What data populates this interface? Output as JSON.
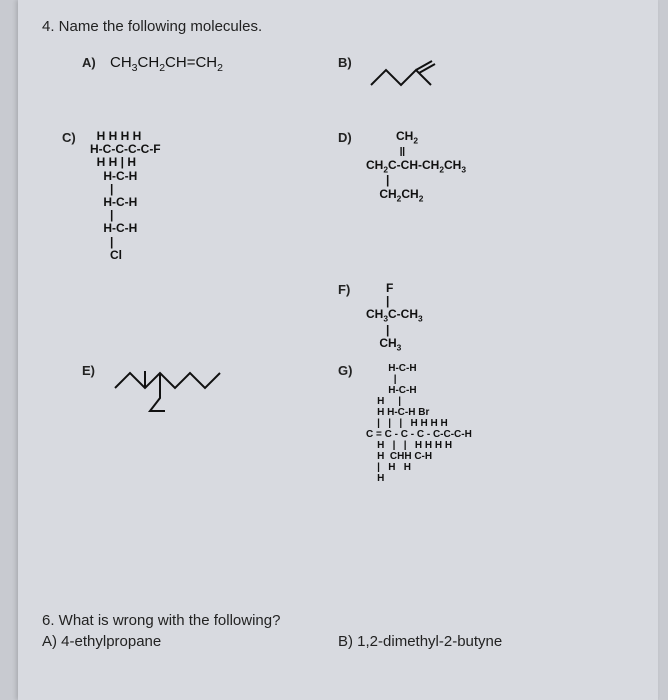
{
  "question4": {
    "title": "4. Name the following molecules.",
    "items": {
      "A": {
        "label": "A)",
        "formula_html": "CH<sub>3</sub>CH<sub>2</sub>CH=CH<sub>2</sub>"
      },
      "B": {
        "label": "B)"
      },
      "C": {
        "label": "C)",
        "lines": [
          "  H H H H",
          "H-C-C-C-C-F",
          "  H H | H",
          "    H-C-H",
          "      |",
          "    H-C-H",
          "      |",
          "    H-C-H",
          "      |",
          "      Cl"
        ]
      },
      "D": {
        "label": "D)",
        "lines": [
          "         CH<sub>2</sub>",
          "          ‖",
          "CH<sub>2</sub>C-CH-CH<sub>2</sub>CH<sub>3</sub>",
          "      |",
          "    CH<sub>2</sub>CH<sub>2</sub>"
        ]
      },
      "E": {
        "label": "E)"
      },
      "F": {
        "label": "F)",
        "lines": [
          "      F",
          "      |",
          "CH<sub>3</sub>C-CH<sub>3</sub>",
          "      |",
          "    CH<sub>3</sub>"
        ]
      },
      "G": {
        "label": "G)",
        "lines": [
          "        H-C-H",
          "          |",
          "        H-C-H",
          "    H     |",
          "    H H-C-H Br",
          "    |   |   |   H H H H",
          "C = C - C - C - C-C-C-H",
          "    H   |   |   H H H H",
          "    H  CHH C-H",
          "    |   H   H",
          "    H"
        ]
      }
    }
  },
  "question6": {
    "title": "6. What is wrong with the following?",
    "A": {
      "label": "A)",
      "text": "4-ethylpropane"
    },
    "B": {
      "label": "B)",
      "text": "1,2-dimethyl-2-butyne"
    }
  },
  "colors": {
    "page_bg": "#d8dae0",
    "outer_bg": "#c8cad0",
    "text": "#222"
  }
}
